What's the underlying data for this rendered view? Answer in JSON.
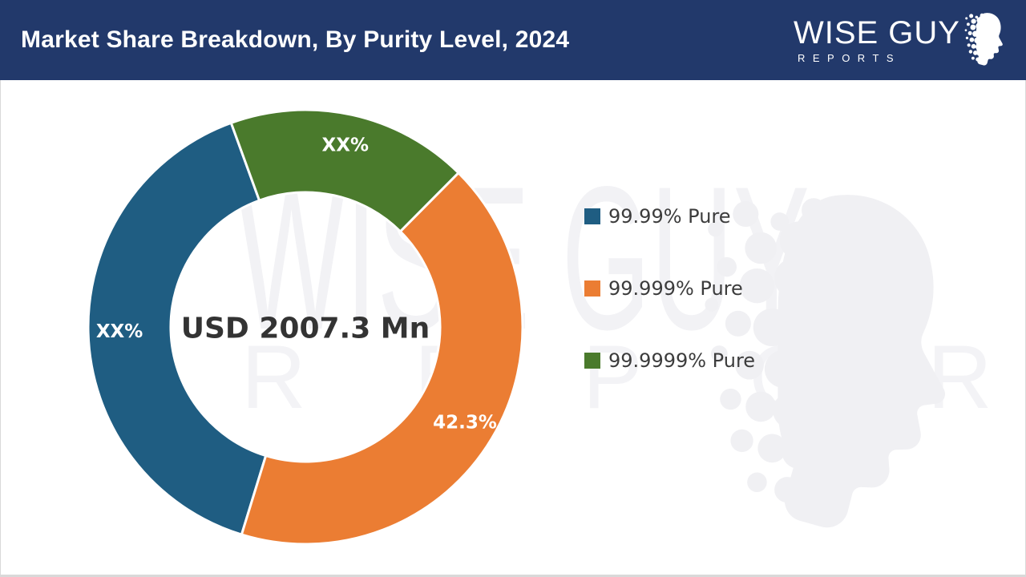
{
  "header": {
    "title": "Market Share Breakdown, By Purity Level, 2024",
    "bg_color": "#22396B",
    "logo": {
      "line1": "WISE GUY",
      "line2": "REPORTS"
    }
  },
  "watermark": {
    "line1": "WISE GUY",
    "line2": "R E P O R T S"
  },
  "chart_data": {
    "type": "pie",
    "variant": "donut",
    "title": "Market Share Breakdown, By Purity Level, 2024",
    "center_label": "USD 2007.3 Mn",
    "categories": [
      "99.99% Pure",
      "99.999% Pure",
      "99.9999% Pure"
    ],
    "series": [
      {
        "name": "99.99% Pure",
        "slice_label": "XX%",
        "value_pct": 39.7,
        "color": "#1F5D82"
      },
      {
        "name": "99.999% Pure",
        "slice_label": "42.3%",
        "value_pct": 42.3,
        "color": "#EB7D33"
      },
      {
        "name": "99.9999% Pure",
        "slice_label": "XX%",
        "value_pct": 18.0,
        "color": "#4A7A2C"
      }
    ],
    "start_angle_deg": 110,
    "counterclockwise": true,
    "outer_radius_px": 271,
    "inner_radius_ratio": 0.62,
    "label_radius_px": 232,
    "slice_gap_color": "#FFFFFF",
    "slice_label_color": "#FFFFFF",
    "center_label_color": "#333333",
    "legend_position": "right",
    "legend_text_color": "#3C3C3C"
  }
}
